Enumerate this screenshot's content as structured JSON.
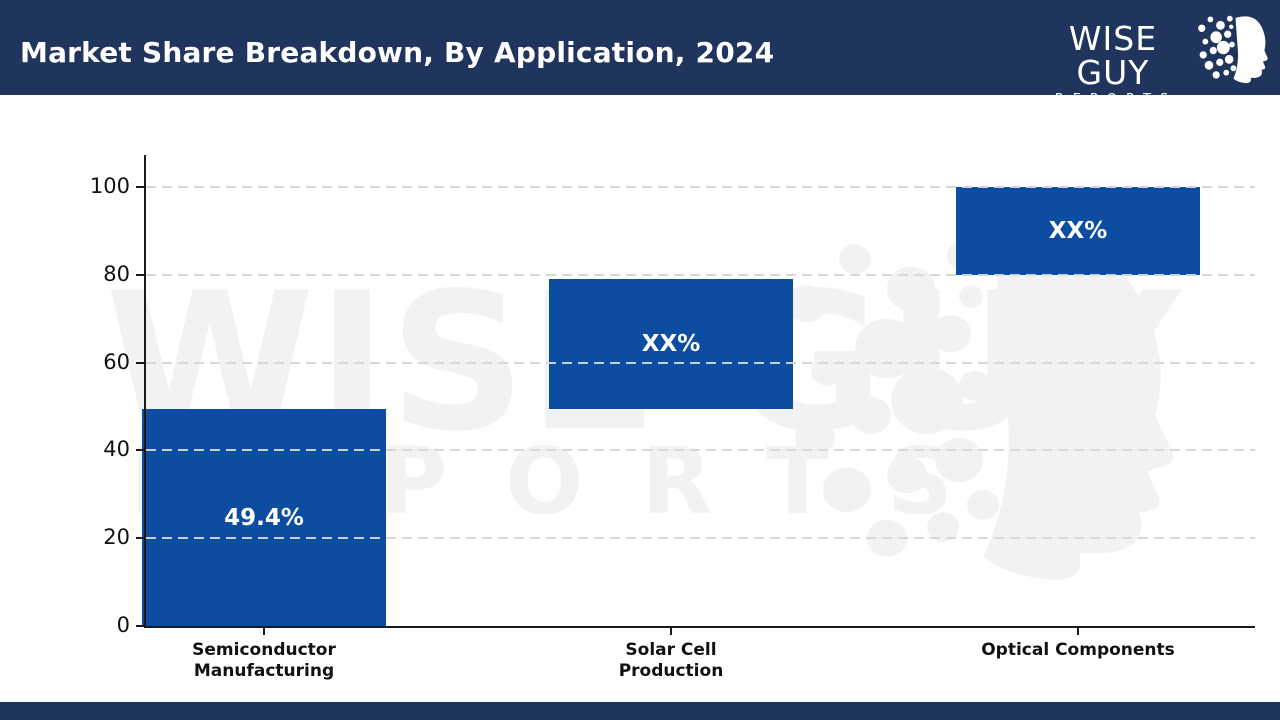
{
  "header": {
    "title": "Market Share Breakdown, By Application, 2024"
  },
  "logo": {
    "line1": "WISE GUY",
    "line2": "REPORTS"
  },
  "watermark": {
    "line1": "WISE GUY",
    "line2": "REPORTS"
  },
  "colors": {
    "header_bg": "#20355e",
    "footer_bg": "#20355e",
    "bar": "#0d4da1",
    "bar_label": "#ffffff",
    "watermark": "#f2f2f4",
    "gridline": "#d6d6d6",
    "axis": "#1a1a1a"
  },
  "chart_data": {
    "type": "bar",
    "variant": "waterfall",
    "title": "Market Share Breakdown, By Application, 2024",
    "categories": [
      [
        "Semiconductor",
        "Manufacturing"
      ],
      [
        "Solar Cell",
        "Production"
      ],
      [
        "Optical Components"
      ]
    ],
    "segments": [
      {
        "category": "Semiconductor Manufacturing",
        "start": 0,
        "end": 49.4,
        "label": "49.4%"
      },
      {
        "category": "Solar Cell Production",
        "start": 49.4,
        "end": 79,
        "label": "XX%"
      },
      {
        "category": "Optical Components",
        "start": 80,
        "end": 100,
        "label": "XX%"
      }
    ],
    "ylim": [
      0,
      100
    ],
    "yticks": [
      0,
      20,
      40,
      60,
      80,
      100
    ],
    "grid": {
      "horizontal": true,
      "style": "dashed"
    },
    "legend": null
  }
}
